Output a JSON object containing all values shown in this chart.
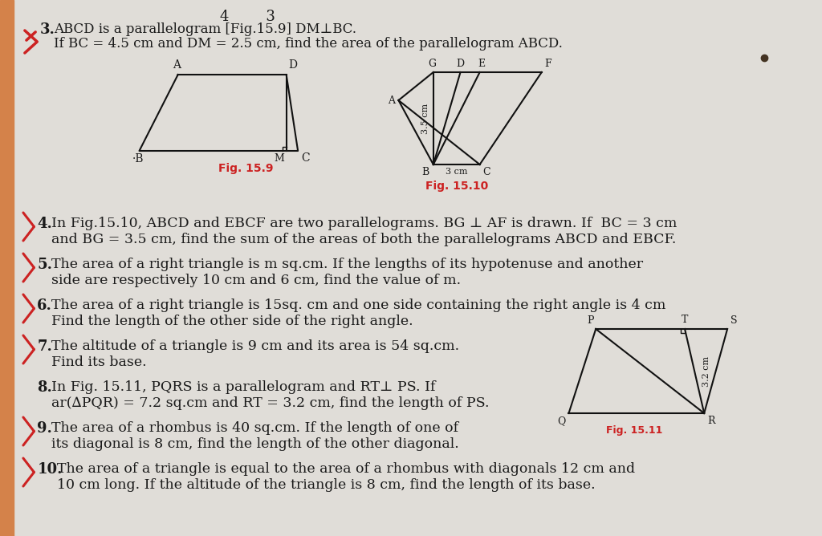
{
  "bg_color": "#e0ddd8",
  "text_color": "#1a1a1a",
  "red_color": "#cc2222",
  "fig159_label": "Fig. 15.9",
  "fig1510_label": "Fig. 15.10",
  "fig1511_label": "Fig. 15.11",
  "left_bar_color": "#d4824a",
  "header": "4        3",
  "q3_line1": "ABCD is a parallelogram [Fig.15.9] DM⊥BC.",
  "q3_line2": "If BC = 4.5 cm and DM = 2.5 cm, find the area of the parallelogram ABCD.",
  "q4_line1": "In Fig.15.10, ABCD and EBCF are two parallelograms. BG ⊥ AF is drawn. If  BC = 3 cm",
  "q4_line2": "and BG = 3.5 cm, find the sum of the areas of both the parallelograms ABCD and EBCF.",
  "q5_line1": "The area of a right triangle is m sq.cm. If the lengths of its hypotenuse and another",
  "q5_line2": "side are respectively 10 cm and 6 cm, find the value of m.",
  "q6_line1": "The area of a right triangle is 15sq. cm and one side containing the right angle is 4 cm",
  "q6_line2": "Find the length of the other side of the right angle.",
  "q7_line1": "The altitude of a triangle is 9 cm and its area is 54 sq.cm.",
  "q7_line2": "Find its base.",
  "q8_line1": "In Fig. 15.11, PQRS is a parallelogram and RT⊥ PS. If",
  "q8_line2": "ar(∆PQR) = 7.2 sq.cm and RT = 3.2 cm, find the length of PS.",
  "q9_line1": "The area of a rhombus is 40 sq.cm. If the length of one of",
  "q9_line2": "its diagonal is 8 cm, find the length of the other diagonal.",
  "q10_line1": "The area of a triangle is equal to the area of a rhombus with diagonals 12 cm and",
  "q10_line2": "10 cm long. If the altitude of the triangle is 8 cm, find the length of its base."
}
